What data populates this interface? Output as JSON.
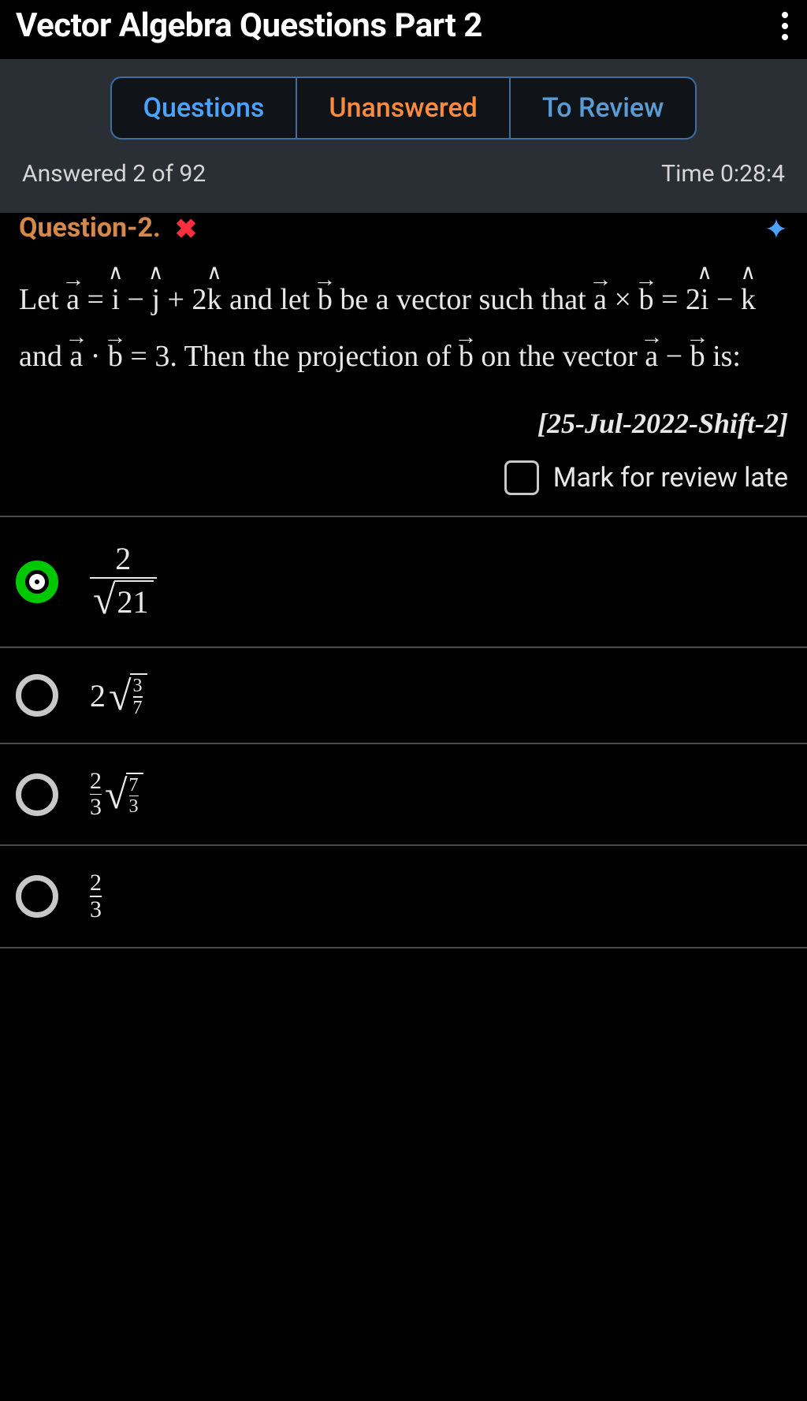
{
  "header": {
    "title": "Vector Algebra Questions Part 2"
  },
  "tabs": {
    "questions": "Questions",
    "unanswered": "Unanswered",
    "review": "To Review"
  },
  "status": {
    "answered_label": "Answered 2 of 92",
    "time_label": "Time 0:28:4"
  },
  "question": {
    "label": "Question-2.",
    "wrong_mark": "✖",
    "text_parts": {
      "let": "Let ",
      "a": "a",
      "eq": " = ",
      "i": "i",
      "minus": " − ",
      "j": "j",
      "plus": " + ",
      "two": "2",
      "k": "k",
      "and_let": " and let ",
      "b": "b",
      "be_vec": " be a vector such that ",
      "times": " × ",
      "eq2": " = ",
      "two2": "2",
      "minus2": " − ",
      "and": " and ",
      "dot": " · ",
      "eq3": " = 3. Then the projection of ",
      "on": " on the vector ",
      "minus3": " − ",
      "is": " is:"
    },
    "source": "[25-Jul-2022-Shift-2]",
    "mark_label": "Mark for review late"
  },
  "options": {
    "a": {
      "num": "2",
      "den": "21",
      "selected": true
    },
    "b": {
      "coef": "2",
      "num": "3",
      "den": "7"
    },
    "c": {
      "fnum": "2",
      "fden": "3",
      "num": "7",
      "den": "3"
    },
    "d": {
      "num": "2",
      "den": "3"
    }
  },
  "colors": {
    "bg": "#000000",
    "midbar": "#2a2f36",
    "accent_blue": "#4aa3ff",
    "accent_orange": "#ff8a3d",
    "tab_border": "#3b6fa3",
    "qlabel": "#d4884a",
    "wrong": "#ff2e3f",
    "selected_green": "#00c800",
    "divider": "#4a4a4a",
    "text": "#e8e8e8"
  }
}
